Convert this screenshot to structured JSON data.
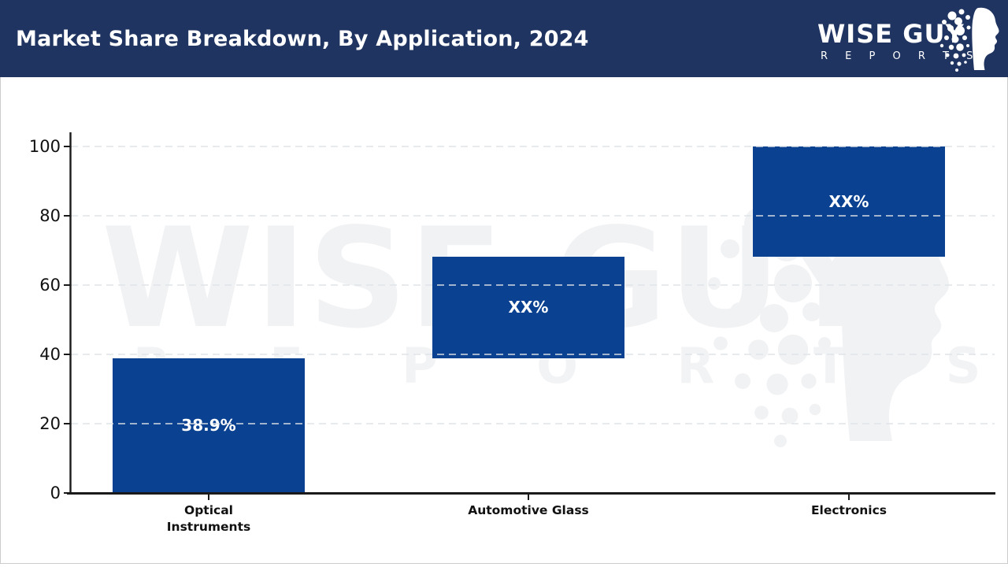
{
  "header": {
    "title": "Market Share Breakdown, By Application, 2024",
    "bg_color": "#1f3461",
    "logo": {
      "wise_guy": "WISE GUY",
      "reports": "R E P O R T S"
    }
  },
  "watermark": {
    "wise_guy": "WISE GUY",
    "reports": "R E P O R T S"
  },
  "chart_data": {
    "type": "bar",
    "variant": "waterfall",
    "title": "Market Share Breakdown, By Application, 2024",
    "categories": [
      "Optical\nInstruments",
      "Automotive Glass",
      "Electronics"
    ],
    "segments": [
      {
        "category": "Optical Instruments",
        "start": 0,
        "end": 38.9,
        "label": "38.9%"
      },
      {
        "category": "Automotive Glass",
        "start": 38.9,
        "end": 68.2,
        "label": "XX%"
      },
      {
        "category": "Electronics",
        "start": 68.2,
        "end": 100,
        "label": "XX%"
      }
    ],
    "ylim": [
      0,
      100
    ],
    "yticks": [
      0,
      20,
      40,
      60,
      80,
      100
    ],
    "grid": "horizontal-dashed",
    "legend": "none",
    "bar_color": "#0a4191",
    "bar_label_color": "#ffffff",
    "axis_color": "#1a1a1a"
  }
}
